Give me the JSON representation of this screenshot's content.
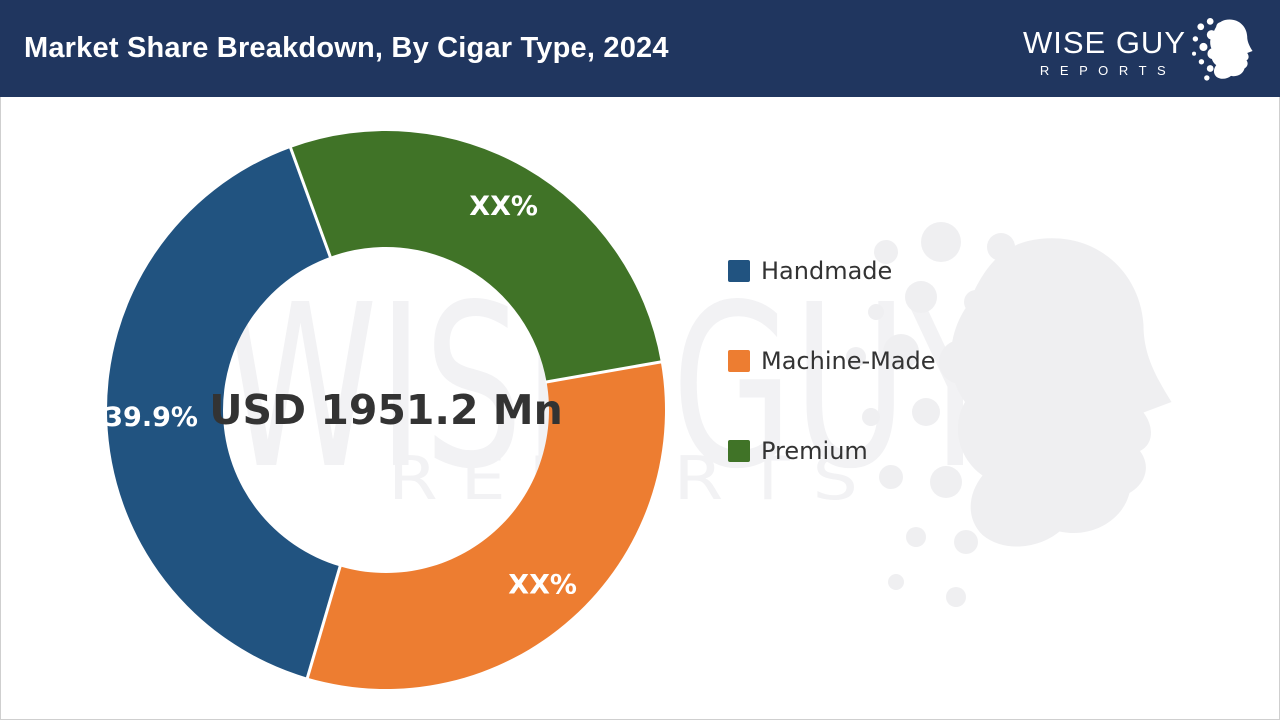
{
  "header": {
    "title": "Market Share Breakdown, By Cigar Type, 2024",
    "background": "#20365F",
    "logo": {
      "line1": "WISE GUY",
      "line2": "R E P O R T S"
    }
  },
  "chart_data": {
    "type": "pie",
    "subtype": "donut",
    "title": "Market Share Breakdown, By Cigar Type, 2024",
    "center_label": "USD 1951.2 Mn",
    "start_angle_deg": 110,
    "direction": "counterclockwise",
    "legend_position": "right",
    "segments": [
      {
        "name": "Handmade",
        "value_pct": 39.9,
        "label": "39.9%",
        "color": "#215380"
      },
      {
        "name": "Machine-Made",
        "value_pct": 32.3,
        "label": "XX%",
        "color": "#ED7D31"
      },
      {
        "name": "Premium",
        "value_pct": 27.8,
        "label": "XX%",
        "color": "#407327"
      }
    ]
  },
  "center_text_color": "#333333",
  "segment_label_color": "#ffffff",
  "watermark": {
    "line1": "WISE GUY",
    "line2": "R E P O R T S",
    "text_color": "#F2F2F4",
    "face_color": "#EFEFF1"
  }
}
